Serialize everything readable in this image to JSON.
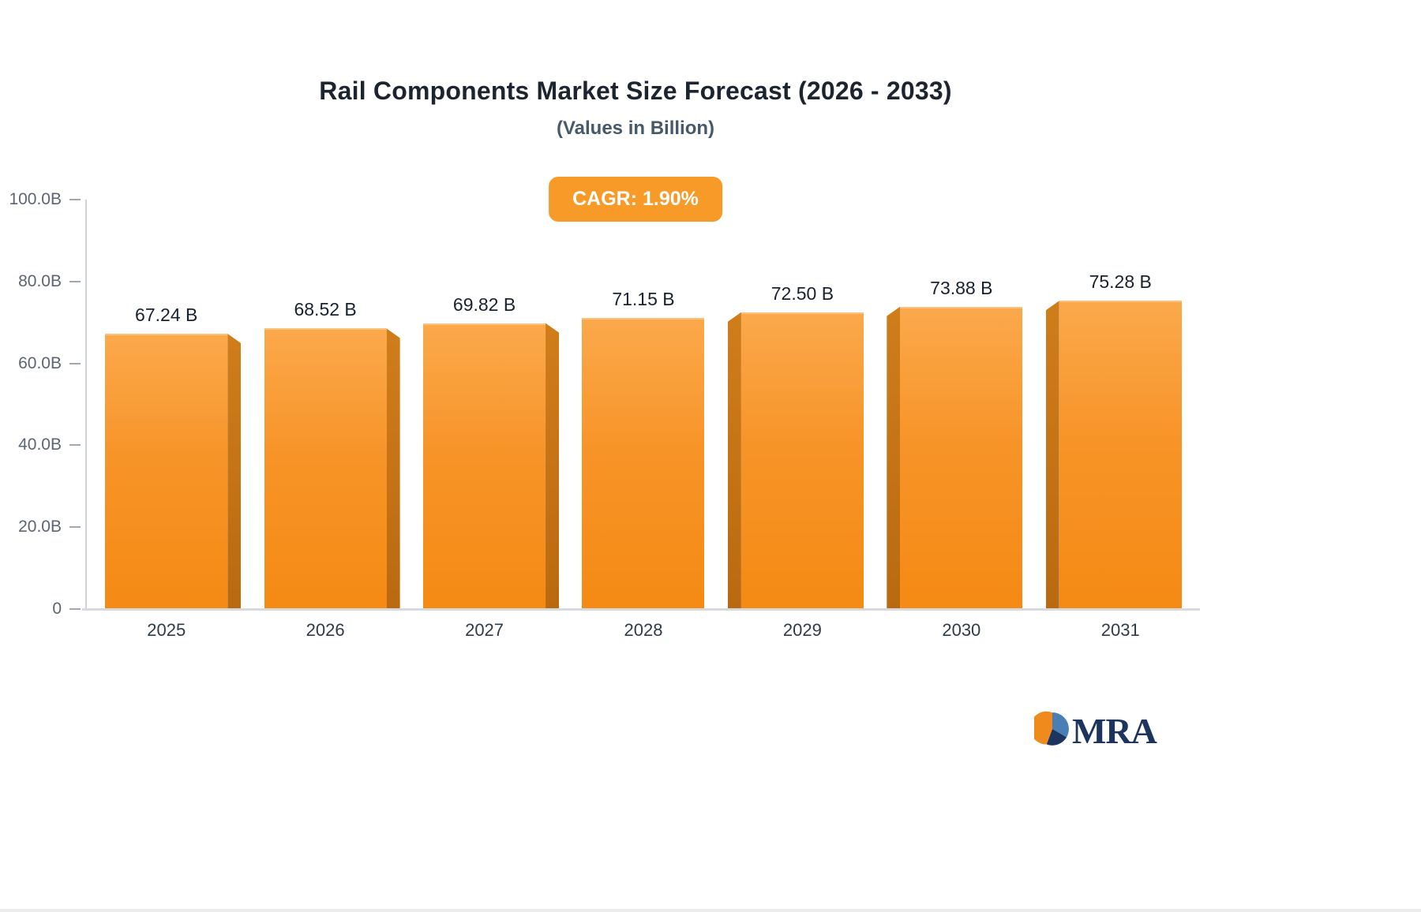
{
  "header": {
    "title": "Rail Components Market Size Forecast (2026 - 2033)",
    "subtitle": "(Values in Billion)",
    "cagr_badge": "CAGR: 1.90%"
  },
  "chart_data": {
    "type": "bar",
    "title": "Rail Components Market Size Forecast (2026 - 2033)",
    "subtitle": "(Values in Billion)",
    "annotation": "CAGR: 1.90%",
    "categories": [
      "2025",
      "2026",
      "2027",
      "2028",
      "2029",
      "2030",
      "2031"
    ],
    "values": [
      67.24,
      68.52,
      69.82,
      71.15,
      72.5,
      73.88,
      75.28
    ],
    "value_labels": [
      "67.24 B",
      "68.52 B",
      "69.82 B",
      "71.15 B",
      "72.50 B",
      "73.88 B",
      "75.28 B"
    ],
    "xlabel": "",
    "ylabel": "",
    "ylim": [
      0,
      100
    ],
    "y_ticks": [
      {
        "label": "100.0B",
        "value": 100
      },
      {
        "label": "80.0B",
        "value": 80
      },
      {
        "label": "60.0B",
        "value": 60
      },
      {
        "label": "40.0B",
        "value": 40
      },
      {
        "label": "20.0B",
        "value": 20
      },
      {
        "label": "0",
        "value": 0
      }
    ],
    "grid": false,
    "legend": false,
    "bar_color": "#F79428",
    "bar_side_color": "#BE6F12"
  },
  "logo": {
    "text": "MRA",
    "icon_colors": {
      "orange": "#F08A1D",
      "navy": "#1C355F",
      "blue": "#4A7FB5"
    }
  }
}
